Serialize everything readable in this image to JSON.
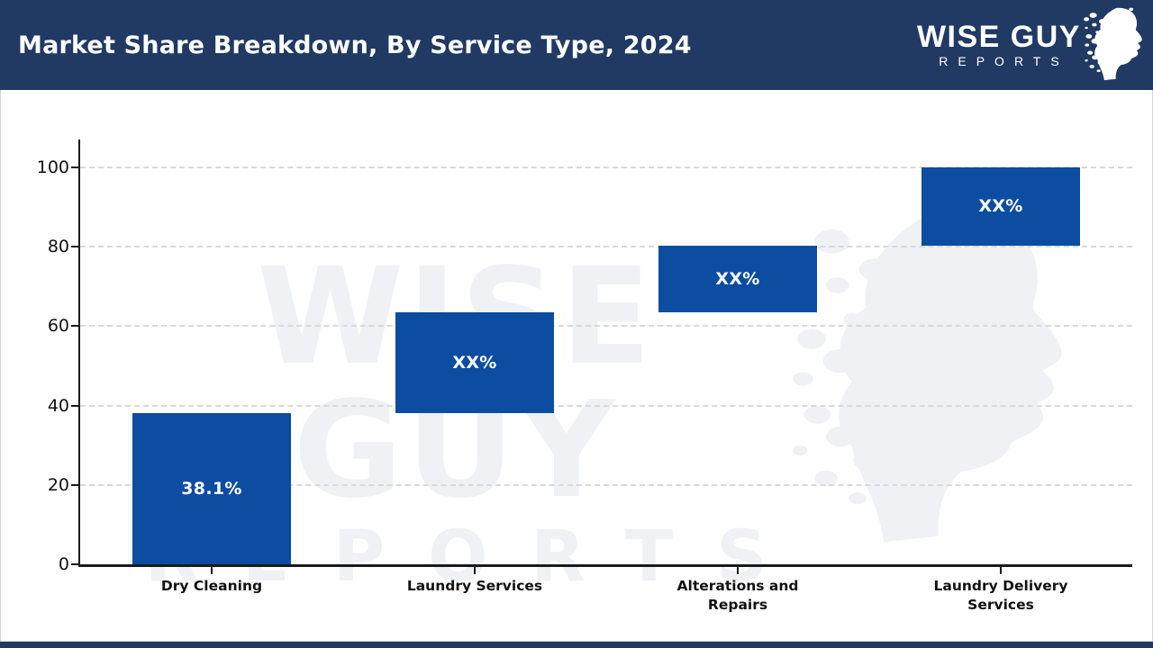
{
  "header": {
    "title": "Market Share Breakdown, By Service Type, 2024",
    "logo": {
      "line1": "WISE GUY",
      "line2": "REPORTS"
    }
  },
  "watermark": {
    "line1": "WISE GUY",
    "line2": "REPORTS"
  },
  "colors": {
    "header_bg": "#203a64",
    "bar": "#0c4da2",
    "bar_label": "#ffffff",
    "axis": "#1a1a1a",
    "grid": "#d9d9d9",
    "tick_label": "#111111",
    "watermark": "#eff1f4"
  },
  "chart_data": {
    "type": "bar",
    "subtype": "waterfall-floating-bars",
    "title": "Market Share Breakdown, By Service Type, 2024",
    "categories": [
      "Dry Cleaning",
      "Laundry Services",
      "Alterations and Repairs",
      "Laundry Delivery Services"
    ],
    "segments": [
      {
        "category": "Dry Cleaning",
        "start": 0,
        "end": 38.1,
        "label": "38.1%"
      },
      {
        "category": "Laundry Services",
        "start": 38.1,
        "end": 63.5,
        "label": "XX%"
      },
      {
        "category": "Alterations and Repairs",
        "start": 63.5,
        "end": 80.3,
        "label": "XX%"
      },
      {
        "category": "Laundry Delivery Services",
        "start": 80.3,
        "end": 100,
        "label": "XX%"
      }
    ],
    "ylim": [
      0,
      100
    ],
    "yticks": [
      0,
      20,
      40,
      60,
      80,
      100
    ],
    "xlabel": "",
    "ylabel": "",
    "grid": "horizontal-dashed",
    "legend": "none"
  }
}
